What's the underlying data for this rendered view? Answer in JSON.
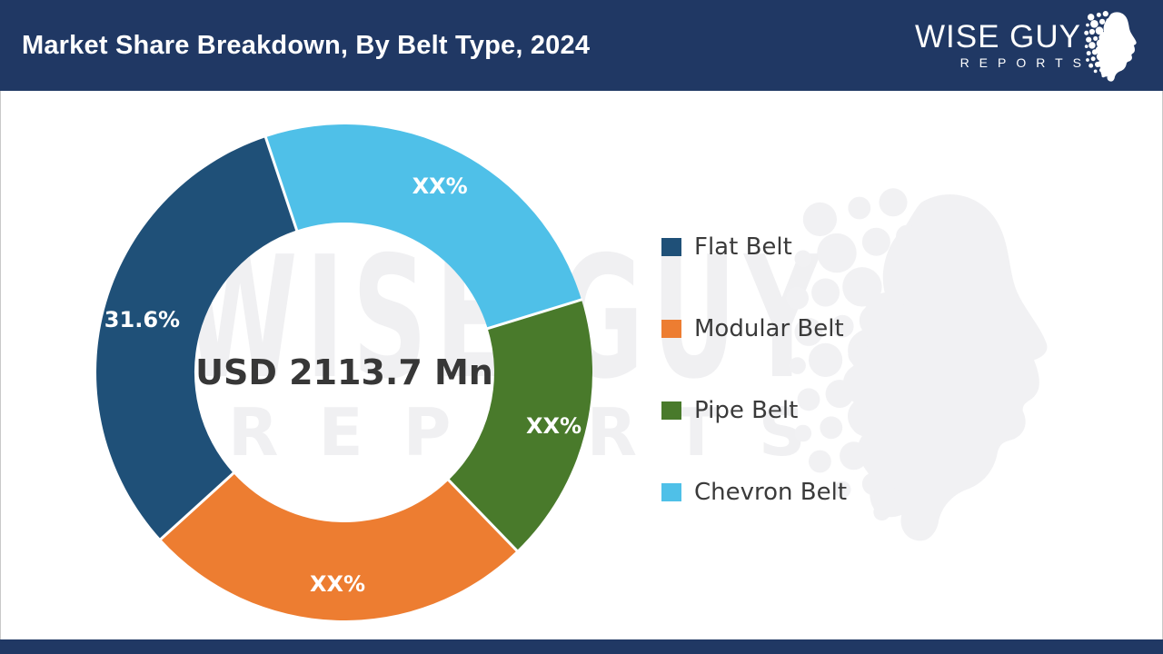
{
  "header": {
    "title": "Market Share Breakdown, By Belt Type, 2024",
    "bg_color": "#203864"
  },
  "logo": {
    "line1": "WISE GUY",
    "line2": "REPORTS"
  },
  "watermark": {
    "line1": "WISE GUY",
    "line2": "REPORTS"
  },
  "chart_data": {
    "type": "pie",
    "subtype": "donut",
    "title": "Market Share Breakdown, By Belt Type, 2024",
    "center_label": "USD 2113.7 Mn",
    "start_angle_deg": -18.5,
    "legend_position": "right",
    "segments": [
      {
        "label": "Chevron Belt",
        "display_pct": "XX%",
        "pct": 25.4,
        "color": "#4FC0E8",
        "label_r": 230
      },
      {
        "label": "Pipe Belt",
        "display_pct": "XX%",
        "pct": 17.5,
        "color": "#497A2B",
        "label_r": 238
      },
      {
        "label": "Modular Belt",
        "display_pct": "XX%",
        "pct": 25.5,
        "color": "#ED7D31",
        "label_r": 233
      },
      {
        "label": "Flat Belt",
        "display_pct": "31.6%",
        "pct": 31.6,
        "color": "#1F5078",
        "label_r": 230
      }
    ],
    "legend": [
      {
        "label": "Flat Belt",
        "color": "#1F5078"
      },
      {
        "label": "Modular Belt",
        "color": "#ED7D31"
      },
      {
        "label": "Pipe Belt",
        "color": "#497A2B"
      },
      {
        "label": "Chevron Belt",
        "color": "#4FC0E8"
      }
    ]
  }
}
